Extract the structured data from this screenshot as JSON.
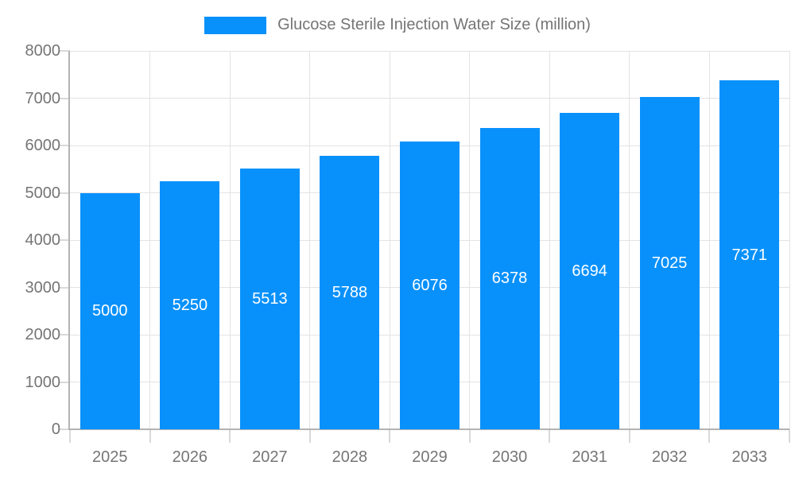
{
  "legend": {
    "label": "Glucose Sterile Injection Water Size (million)",
    "swatch_color": "#0991fb"
  },
  "chart_data": {
    "type": "bar",
    "title": "Glucose Sterile Injection Water Size (million)",
    "categories": [
      "2025",
      "2026",
      "2027",
      "2028",
      "2029",
      "2030",
      "2031",
      "2032",
      "2033"
    ],
    "values": [
      5000,
      5250,
      5513,
      5788,
      6076,
      6378,
      6694,
      7025,
      7371
    ],
    "xlabel": "",
    "ylabel": "",
    "ylim": [
      0,
      8000
    ],
    "ytick_step": 1000,
    "yticks": [
      0,
      1000,
      2000,
      3000,
      4000,
      5000,
      6000,
      7000,
      8000
    ],
    "grid": true,
    "legend_position": "top-center",
    "value_labels_inside": true,
    "bar_color": "#0991fb",
    "value_label_color": "#ffffff",
    "axis_text_color": "#757575",
    "grid_color": "#e3e3e3",
    "axis_line_color": "#b3b3b3",
    "background_color": "#ffffff"
  }
}
